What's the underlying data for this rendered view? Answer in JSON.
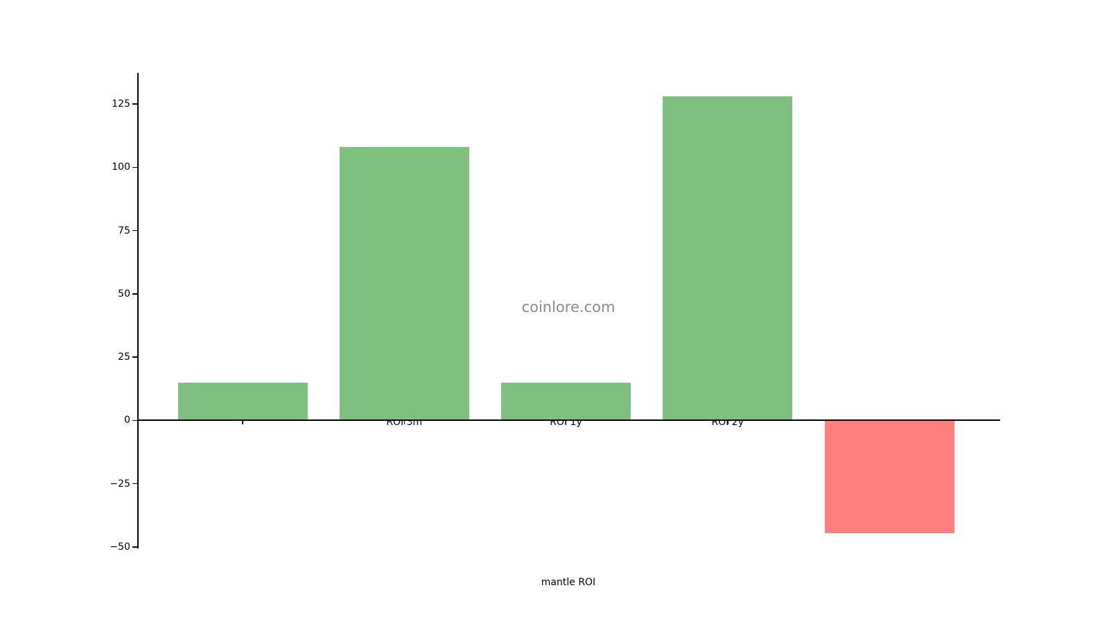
{
  "watermark": "coinlore.com",
  "chart_data": {
    "type": "bar",
    "title": "",
    "xlabel": "mantle ROI",
    "ylabel": "",
    "categories": [
      "",
      "ROI 3m",
      "ROI 1y",
      "ROI 2y",
      ""
    ],
    "values": [
      15,
      108,
      15,
      128,
      -44.5
    ],
    "yticks": [
      125,
      100,
      75,
      50,
      25,
      0,
      -25,
      -50
    ],
    "ylim": [
      -50.6,
      137.4
    ],
    "grid": false,
    "legend": "none",
    "positive_color": "#7fbf7f",
    "negative_color": "#ff7f7f",
    "axis_color": "#000000",
    "text_color": "#000000",
    "watermark_color": "#8a8a8a",
    "background_color": "#ffffff"
  }
}
